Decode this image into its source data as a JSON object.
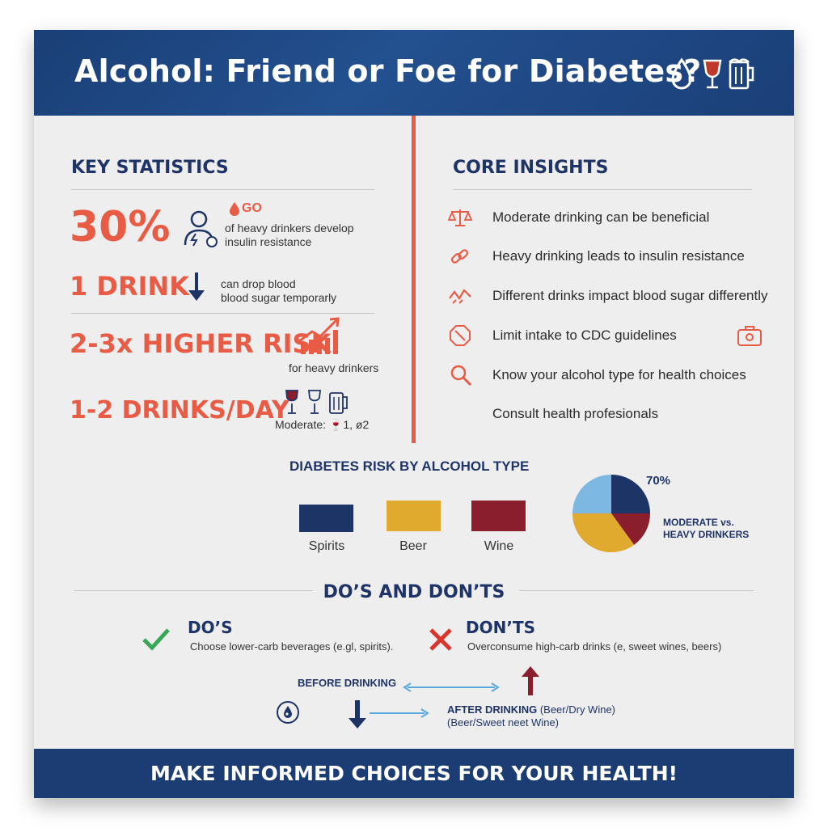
{
  "header": {
    "title": "Alcohol: Friend or Foe for Diabetes?",
    "icons": [
      "drop-icon",
      "wine-glass-icon",
      "beer-mug-icon"
    ]
  },
  "key_stats": {
    "title": "KEY STATISTICS",
    "stat1": {
      "value": "30%",
      "badge": "GO",
      "text": [
        "of heavy drinkers develop",
        "insulin resistance"
      ],
      "icon": "person-icon"
    },
    "stat2": {
      "value": "1 DRINK",
      "text": [
        "can drop blood",
        "blood sugar temporarly"
      ],
      "icon": "down-arrow-icon"
    },
    "stat3": {
      "value": "2-3x HIGHER RISK",
      "text": "for heavy drinkers",
      "icon": "bar-growth-icon"
    },
    "stat4": {
      "value": "1-2 DRINKS/DAY",
      "text": "Moderate: 🍷1, ø2",
      "icon": "drinks-icon"
    }
  },
  "core_insights": {
    "title": "CORE INSIGHTS",
    "items": [
      {
        "label": "Moderate drinking can be beneficial",
        "icon": "scale-icon"
      },
      {
        "label": "Heavy drinking leads to insulin resistance",
        "icon": "chain-link-icon"
      },
      {
        "label": "Different drinks impact blood sugar differently",
        "icon": "zigzag-icon"
      },
      {
        "label": "Limit intake to CDC guidelines",
        "icon": "no-sign-icon"
      },
      {
        "label": "Know your alcohol type for health choices",
        "icon": "magnifier-icon"
      },
      {
        "label": "Consult health profesionals",
        "icon": ""
      }
    ],
    "side_icon": "medical-kit-icon"
  },
  "risk_chart": {
    "title": "DIABETES RISK BY ALCOHOL TYPE",
    "legend": [
      {
        "label": "Spirits",
        "color": "#1c3566"
      },
      {
        "label": "Beer",
        "color": "#e0aa2e"
      },
      {
        "label": "Wine",
        "color": "#8b1e2c"
      }
    ],
    "pie_pct": "70%",
    "pie_label": [
      "MODERATE vs.",
      "HEAVY DRINKERS"
    ],
    "pie_slices": [
      {
        "color": "#1c3566",
        "value": 25
      },
      {
        "color": "#8b1e2c",
        "value": 15
      },
      {
        "color": "#e0aa2e",
        "value": 35
      },
      {
        "color": "#7db8e3",
        "value": 25
      }
    ]
  },
  "dos_donts": {
    "title": "DO’S AND DON’TS",
    "do_title": "DO’S",
    "do_text": "Choose lower-carb beverages (e.gl, spirits).",
    "dont_title": "DON’TS",
    "dont_text": "Overconsume high-carb drinks (e, sweet wines, beers)",
    "before": "BEFORE DRINKING",
    "after_bold": "AFTER DRINKING",
    "after_rest": " (Beer/Dry Wine)",
    "after_line2": "(Beer/Sweet neet Wine)"
  },
  "footer": {
    "text": "MAKE INFORMED CHOICES FOR YOUR HEALTH!"
  },
  "colors": {
    "navy": "#1f3466",
    "accent_red": "#e85b45",
    "wine": "#8b1e2c",
    "gold": "#e0aa2e",
    "light_blue": "#7db8e3"
  }
}
